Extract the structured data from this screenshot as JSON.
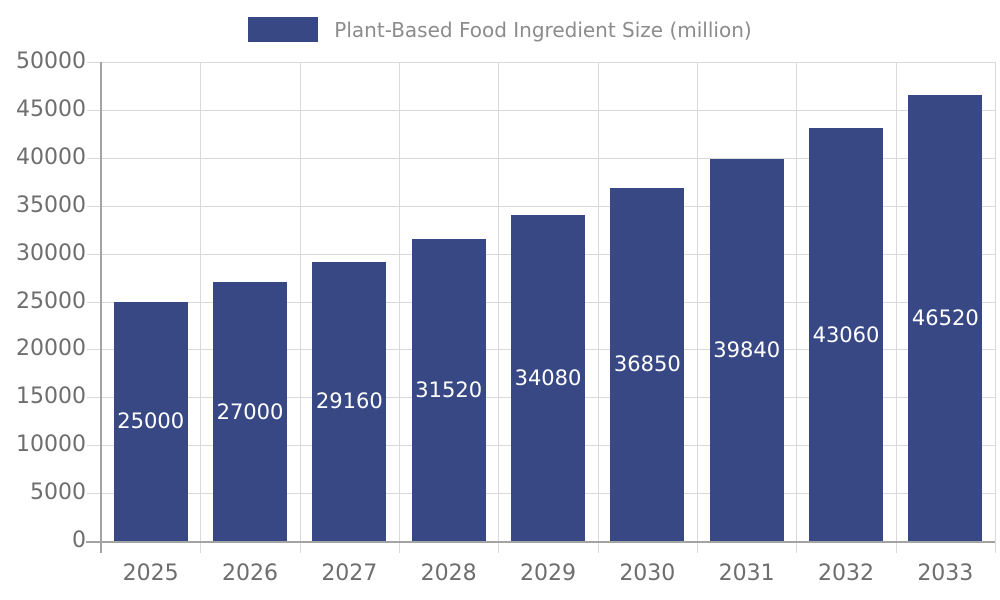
{
  "legend": {
    "label": "Plant-Based Food Ingredient Size (million)",
    "swatch_color": "#374885"
  },
  "chart_data": {
    "type": "bar",
    "title": "Plant-Based Food Ingredient Size (million)",
    "categories": [
      "2025",
      "2026",
      "2027",
      "2028",
      "2029",
      "2030",
      "2031",
      "2032",
      "2033"
    ],
    "series": [
      {
        "name": "Plant-Based Food Ingredient Size (million)",
        "values": [
          25000,
          27000,
          29160,
          31520,
          34080,
          36850,
          39840,
          43060,
          46520
        ]
      }
    ],
    "xlabel": "",
    "ylabel": "",
    "ylim": [
      0,
      50000
    ],
    "ytick_step": 5000,
    "yticks": [
      0,
      5000,
      10000,
      15000,
      20000,
      25000,
      30000,
      35000,
      40000,
      45000,
      50000
    ],
    "grid": true,
    "legend_position": "top-center",
    "colors": {
      "bar": "#374885",
      "value_label": "#ffffff",
      "grid": "#d9d9d9",
      "axis": "#a3a3a3",
      "tick_label": "#6e6e6e",
      "legend_text": "#8c8c8c"
    }
  }
}
